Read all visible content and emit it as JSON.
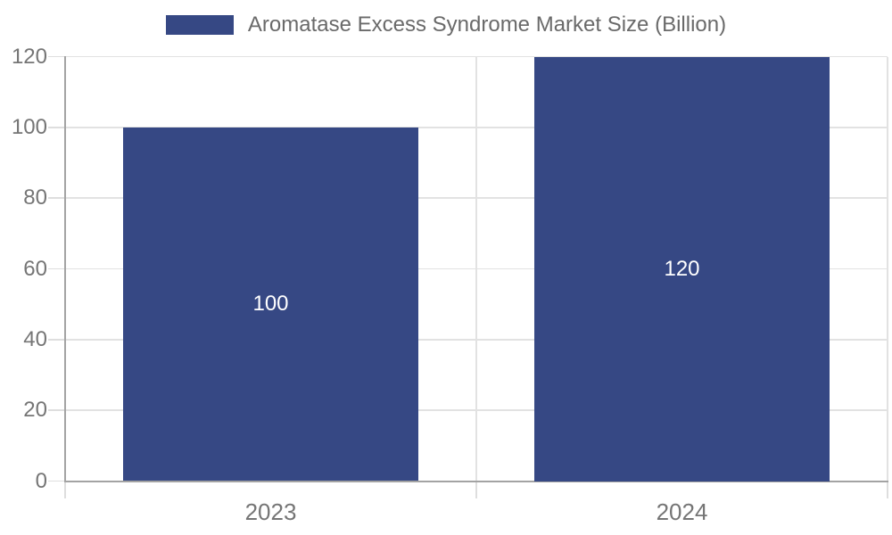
{
  "chart_data": {
    "type": "bar",
    "title": "Aromatase Excess Syndrome Market Size (Billion)",
    "series_name": "Aromatase Excess Syndrome Market Size (Billion)",
    "categories": [
      "2023",
      "2024"
    ],
    "values": [
      100,
      120
    ],
    "bar_value_labels": [
      "100",
      "120"
    ],
    "xlabel": "",
    "ylabel": "",
    "ylim": [
      0,
      120
    ],
    "yticks": [
      0,
      20,
      40,
      60,
      80,
      100,
      120
    ],
    "grid": true,
    "legend_position": "top-center",
    "colors": {
      "bar": "#364884",
      "bar_value_text": "#ffffff",
      "axis_text": "#757575",
      "legend_text": "#6a6a6a",
      "grid_line": "#e2e2e2",
      "tick_line": "#dedede",
      "axis_line": "#a3a3a3",
      "background": "#ffffff"
    }
  }
}
